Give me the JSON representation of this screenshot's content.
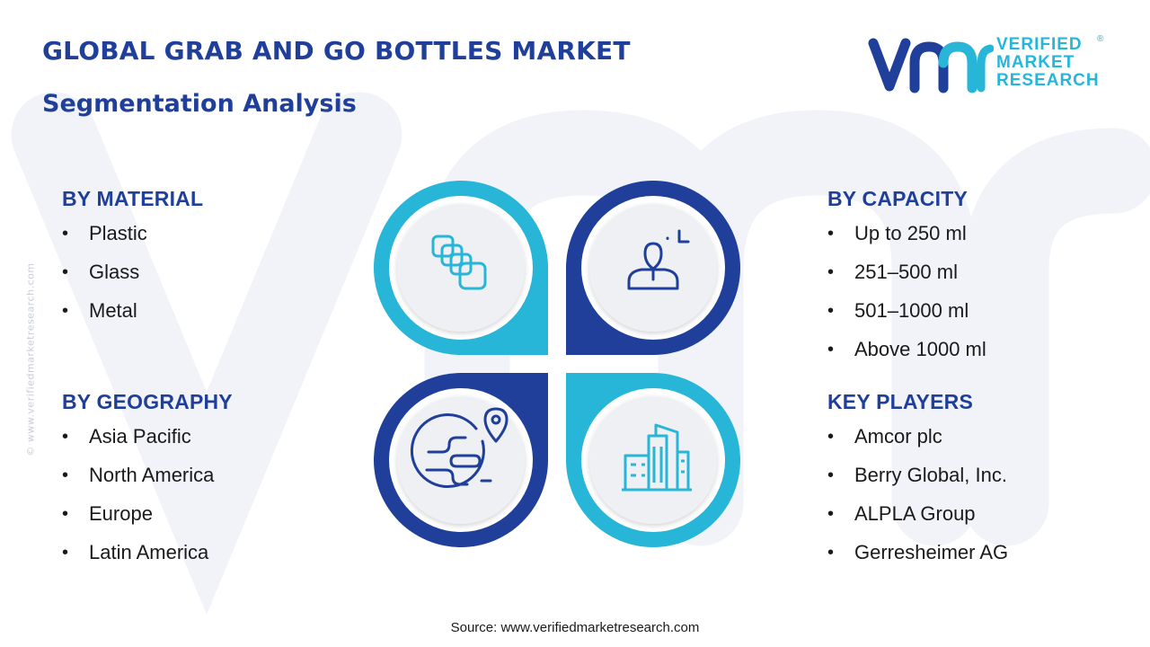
{
  "header": {
    "title": "GLOBAL GRAB AND GO BOTTLES MARKET",
    "subtitle": "Segmentation Analysis"
  },
  "logo": {
    "line1": "VERIFIED",
    "line2": "MARKET",
    "line3": "RESEARCH",
    "registered": "®"
  },
  "side_watermark": "© www.verifiedmarketresearch.com",
  "sections": {
    "material": {
      "heading": "BY MATERIAL",
      "items": [
        "Plastic",
        "Glass",
        "Metal"
      ]
    },
    "geography": {
      "heading": "BY GEOGRAPHY",
      "items": [
        "Asia Pacific",
        "North America",
        "Europe",
        "Latin America"
      ]
    },
    "capacity": {
      "heading": "BY CAPACITY",
      "items": [
        "Up to 250 ml",
        "251–500 ml",
        "501–1000 ml",
        "Above 1000 ml"
      ]
    },
    "players": {
      "heading": "KEY PLAYERS",
      "items": [
        "Amcor plc",
        "Berry Global, Inc.",
        "ALPLA Group",
        "Gerresheimer AG"
      ]
    }
  },
  "icons": {
    "top_left": "stacked-squares-icon",
    "top_right": "person-target-icon",
    "bottom_left": "globe-location-icon",
    "bottom_right": "city-buildings-icon"
  },
  "colors": {
    "title": "#1f3f9a",
    "cyan": "#27b6d8",
    "navy": "#1f3f9a",
    "icon_bg": "#eef0f3"
  },
  "source": "Source: www.verifiedmarketresearch.com"
}
